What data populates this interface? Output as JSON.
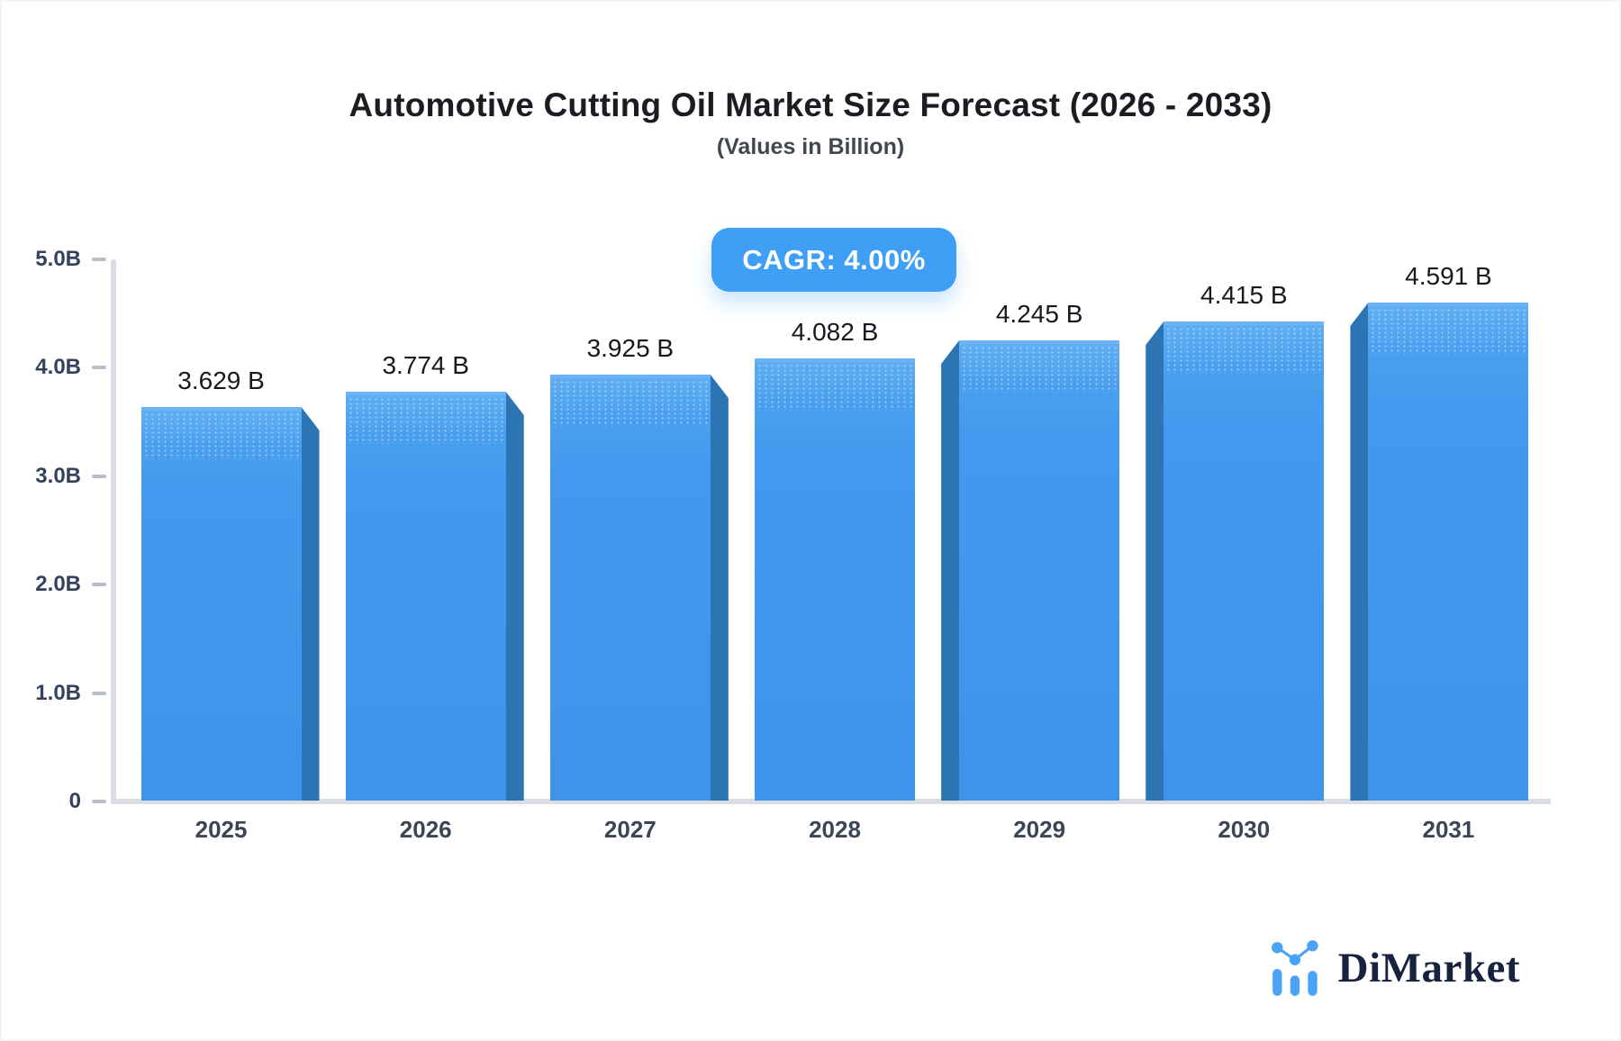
{
  "header": {
    "title": "Automotive Cutting Oil Market Size Forecast (2026 - 2033)",
    "subtitle": "(Values in Billion)",
    "cagr_badge": "CAGR: 4.00%"
  },
  "chart_data": {
    "type": "bar",
    "title": "Automotive Cutting Oil Market Size Forecast (2026 - 2033)",
    "subtitle": "(Values in Billion)",
    "annotation": "CAGR: 4.00%",
    "categories": [
      "2025",
      "2026",
      "2027",
      "2028",
      "2029",
      "2030",
      "2031"
    ],
    "values": [
      3.629,
      3.774,
      3.925,
      4.082,
      4.245,
      4.415,
      4.591
    ],
    "value_labels": [
      "3.629 B",
      "3.774 B",
      "3.925 B",
      "4.082 B",
      "4.245 B",
      "4.415 B",
      "4.591 B"
    ],
    "xlabel": "",
    "ylabel": "",
    "ylim": [
      0,
      5
    ],
    "y_ticks": [
      {
        "label": "5.0B",
        "value": 5
      },
      {
        "label": "4.0B",
        "value": 4
      },
      {
        "label": "3.0B",
        "value": 3
      },
      {
        "label": "2.0B",
        "value": 2
      },
      {
        "label": "1.0B",
        "value": 1
      },
      {
        "label": "0",
        "value": 0
      }
    ],
    "grid": "off",
    "legend": "none",
    "bar_style": "3d-prism"
  },
  "footer": {
    "logo_text": "DiMarket"
  },
  "colors": {
    "bar_blue": "#3f99ee",
    "bar_top_highlight": "#6ab4f6",
    "bar_side_dark": "#2d74b4",
    "badge_blue": "#3f9ff4",
    "axis_gray": "#dadee4",
    "tick_gray": "#b7bec8",
    "y_label": "#35425e",
    "x_label": "#3c4554",
    "value_label": "#16191f",
    "title_color": "#1b1d22",
    "logo_navy": "#17233e",
    "logo_blue": "#4aa3f7"
  }
}
